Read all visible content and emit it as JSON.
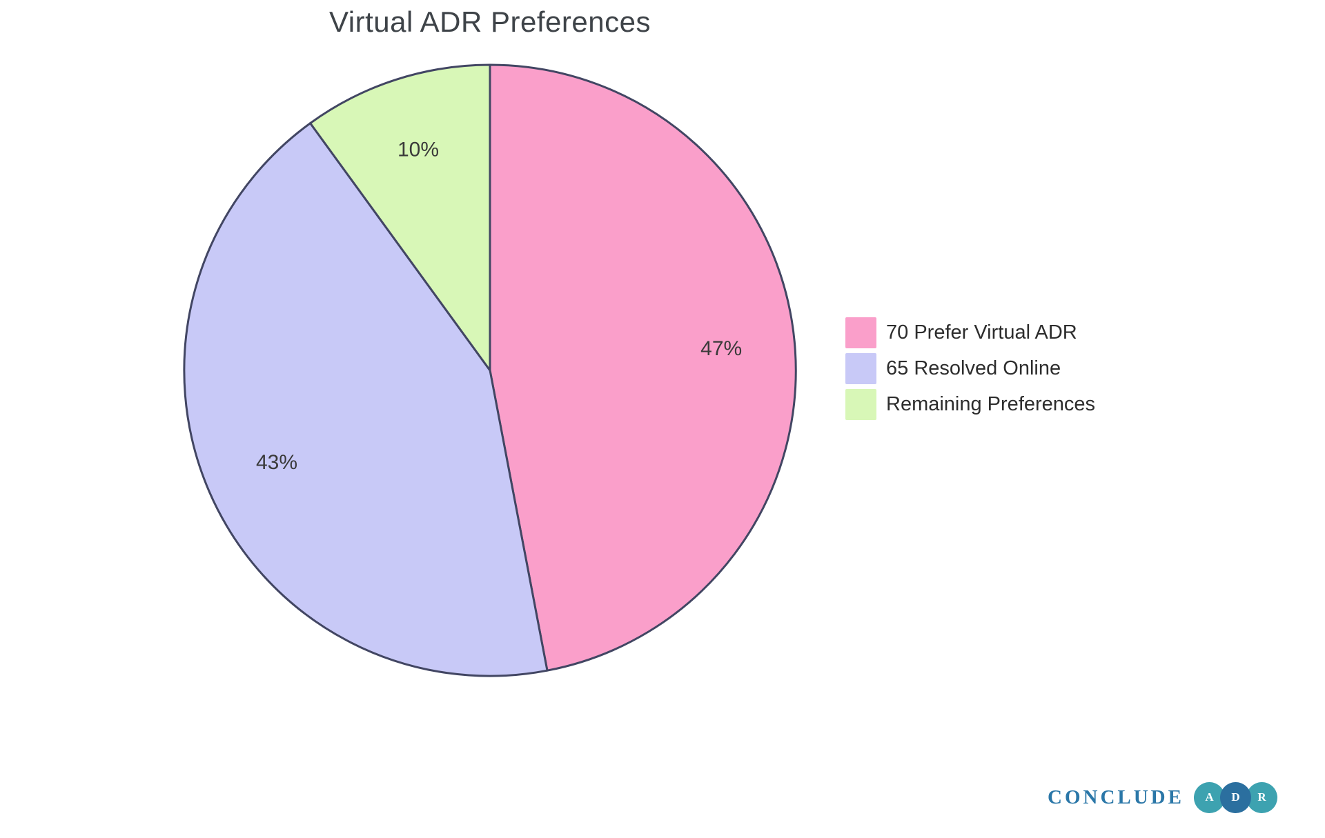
{
  "chart_data": {
    "type": "pie",
    "title": "Virtual ADR Preferences",
    "labels": [
      "70 Prefer Virtual ADR",
      "65 Resolved Online",
      "Remaining Preferences"
    ],
    "values": [
      47,
      43,
      10
    ],
    "value_labels": [
      "47%",
      "43%",
      "10%"
    ],
    "colors": [
      "#FA9FCA",
      "#C8C9F7",
      "#D8F7B7"
    ],
    "stroke_color": "#424663",
    "start_angle_deg": 0,
    "direction": "clockwise",
    "legend_position": "right",
    "label_color": "#3a3a3a"
  },
  "branding": {
    "wordmark": "CONCLUDE",
    "wordmark_color": "#2B77A8",
    "badge_letters": [
      "A",
      "D",
      "R"
    ],
    "badge_colors": [
      "#3DA2B0",
      "#2B6F9F",
      "#3DA2B0"
    ]
  }
}
